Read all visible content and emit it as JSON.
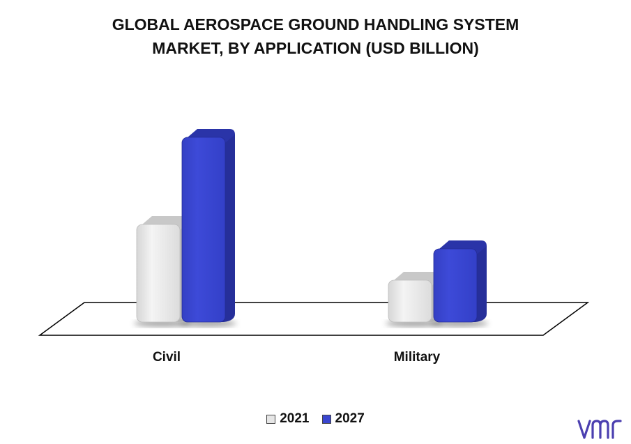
{
  "title_line1": "GLOBAL AEROSPACE GROUND HANDLING SYSTEM",
  "title_line2": "MARKET, BY APPLICATION (USD BILLION)",
  "colors": {
    "series_2021": "#e6e6e6",
    "series_2021_side": "#bdbdbd",
    "series_2027": "#3a46d0",
    "series_2027_side": "#262f9a"
  },
  "logo": "vmr-logo",
  "chart_data": {
    "type": "bar",
    "title": "GLOBAL AEROSPACE GROUND HANDLING SYSTEM MARKET, BY APPLICATION (USD BILLION)",
    "categories": [
      "Civil",
      "Military"
    ],
    "series": [
      {
        "name": "2021",
        "values": [
          1.4,
          0.6
        ]
      },
      {
        "name": "2027",
        "values": [
          2.65,
          1.05
        ]
      }
    ],
    "legend": "bottom-center",
    "grid": false,
    "ylim": [
      0,
      3
    ]
  }
}
